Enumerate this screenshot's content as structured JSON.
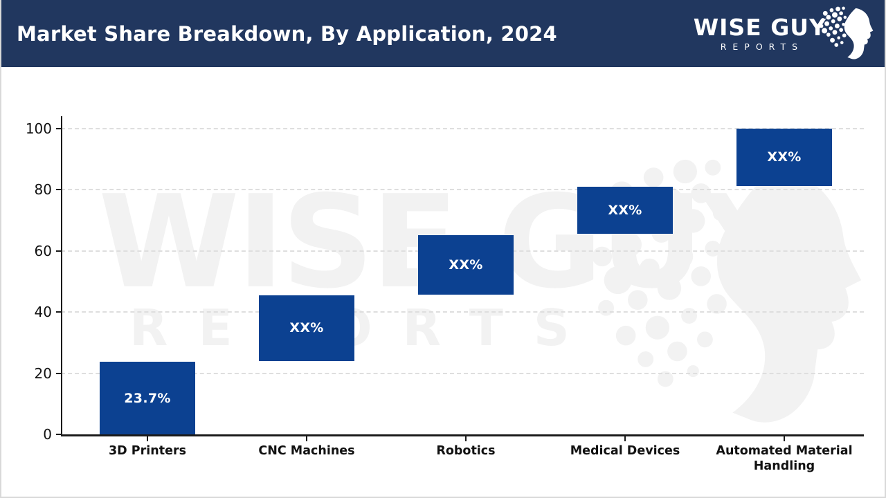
{
  "header": {
    "title": "Market Share Breakdown, By Application, 2024",
    "bg_color": "#21375f",
    "logo": {
      "line1": "WISE GUY",
      "line2": "REPORTS"
    }
  },
  "watermark": {
    "line1": "WISE GUY",
    "line2": "REPORTS"
  },
  "chart_data": {
    "type": "bar",
    "subtype": "waterfall",
    "title": "Market Share Breakdown, By Application, 2024",
    "categories": [
      "3D Printers",
      "CNC Machines",
      "Robotics",
      "Medical Devices",
      "Automated Material Handling"
    ],
    "series": [
      {
        "name": "Market Share (%)",
        "segments": [
          {
            "category": "3D Printers",
            "start": 0,
            "end": 23.7,
            "label": "23.7%"
          },
          {
            "category": "CNC Machines",
            "start": 24.0,
            "end": 45.5,
            "label": "XX%"
          },
          {
            "category": "Robotics",
            "start": 45.6,
            "end": 65.2,
            "label": "XX%"
          },
          {
            "category": "Medical Devices",
            "start": 65.5,
            "end": 81.0,
            "label": "XX%"
          },
          {
            "category": "Automated Material Handling",
            "start": 81.3,
            "end": 100.0,
            "label": "XX%"
          }
        ]
      }
    ],
    "xlabel": "",
    "ylabel": "",
    "yticks": [
      0,
      20,
      40,
      60,
      80,
      100
    ],
    "ytick_labels": [
      "0",
      "20",
      "40",
      "60",
      "80",
      "100"
    ],
    "ylim": [
      0,
      105
    ],
    "grid": "horizontal-dashed",
    "legend": "none",
    "bar_color": "#0c4191",
    "bar_value_color": "#ffffff",
    "axis_color": "#1a1a1a",
    "grid_color": "#dedede",
    "watermark_color": "#f2f2f2"
  }
}
